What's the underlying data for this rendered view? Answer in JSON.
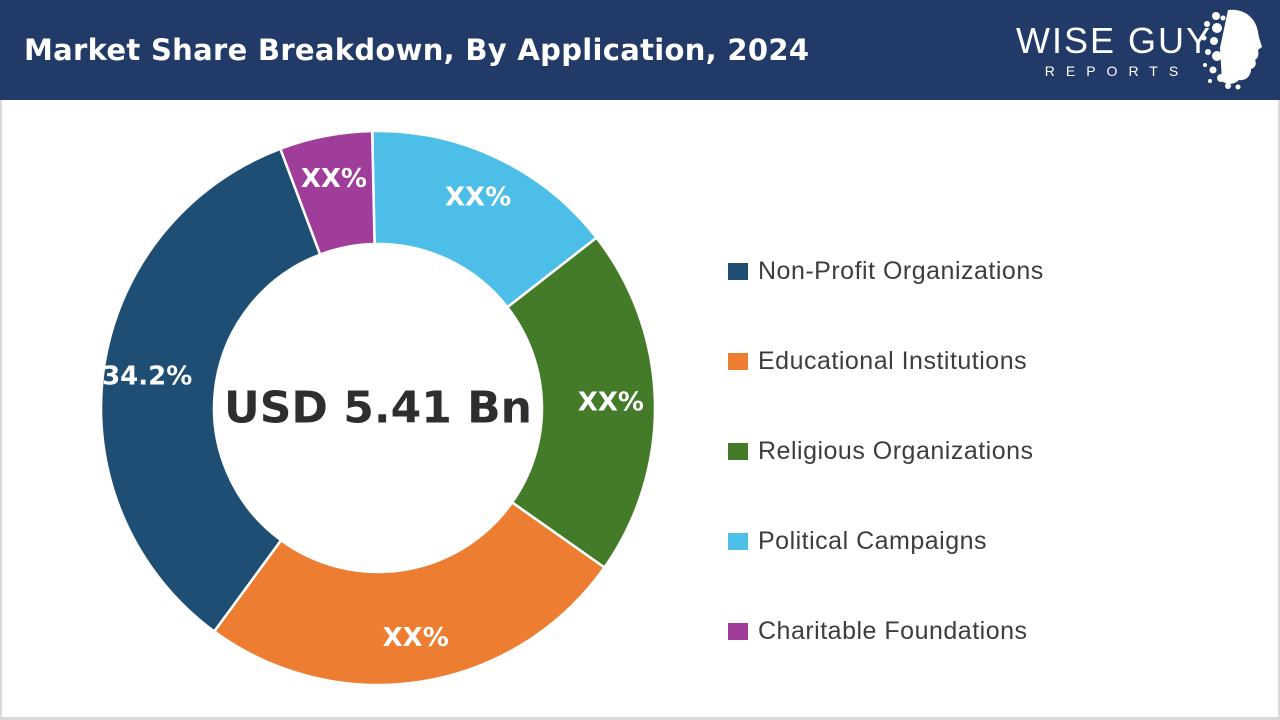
{
  "header": {
    "title": "Market Share Breakdown, By Application, 2024",
    "background_color": "#213A67"
  },
  "logo": {
    "line1": "WISE GUY",
    "line2": "REPORTS"
  },
  "watermark": {
    "line1": "WISE GUY",
    "line2": "REPORTS"
  },
  "chart_data": {
    "type": "pie",
    "subtype": "donut",
    "title": "Market Share Breakdown, By Application, 2024",
    "center_label": "USD 5.41 Bn",
    "start_angle_deg": -1.2,
    "clockwise": true,
    "outer_radius_px": 277,
    "inner_radius_px": 164,
    "label_radius_px": 233,
    "slice_gap_stroke": "#ffffff",
    "segments": [
      {
        "name": "Political Campaigns",
        "pct": 14.8,
        "color": "#4DBEE8",
        "slice_label": "XX%"
      },
      {
        "name": "Religious Organizations",
        "pct": 20.3,
        "color": "#447B29",
        "slice_label": "XX%"
      },
      {
        "name": "Educational Institutions",
        "pct": 25.3,
        "color": "#ED7D31",
        "slice_label": "XX%"
      },
      {
        "name": "Non-Profit Organizations",
        "pct": 34.2,
        "color": "#1F4E74",
        "slice_label": "34.2%"
      },
      {
        "name": "Charitable Foundations",
        "pct": 5.4,
        "color": "#A03D9B",
        "slice_label": "XX%"
      }
    ]
  },
  "legend": {
    "items": [
      {
        "label": "Non-Profit Organizations",
        "color": "#1F4E74"
      },
      {
        "label": "Educational Institutions",
        "color": "#ED7D31"
      },
      {
        "label": "Religious Organizations",
        "color": "#447B29"
      },
      {
        "label": "Political Campaigns",
        "color": "#4DBEE8"
      },
      {
        "label": "Charitable Foundations",
        "color": "#A03D9B"
      }
    ]
  }
}
